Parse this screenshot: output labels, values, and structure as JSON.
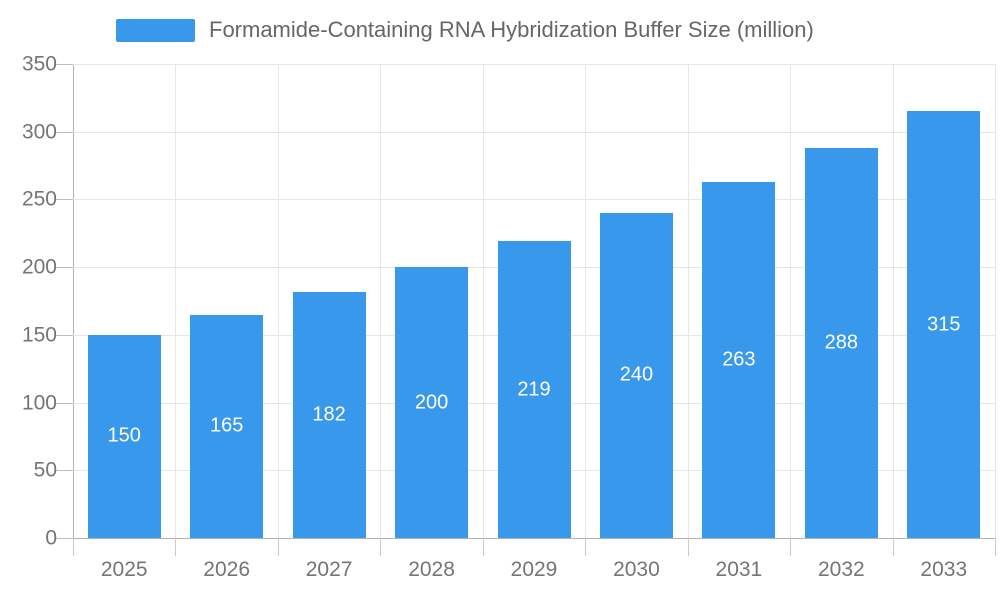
{
  "chart_data": {
    "type": "bar",
    "title": "Formamide-Containing RNA Hybridization Buffer Size (million)",
    "categories": [
      "2025",
      "2026",
      "2027",
      "2028",
      "2029",
      "2030",
      "2031",
      "2032",
      "2033"
    ],
    "values": [
      150,
      165,
      182,
      200,
      219,
      240,
      263,
      288,
      315
    ],
    "xlabel": "",
    "ylabel": "",
    "ylim": [
      0,
      350
    ],
    "ytick_interval": 50,
    "ytick_labels": [
      "0",
      "50",
      "100",
      "150",
      "200",
      "250",
      "300",
      "350"
    ],
    "grid": true,
    "legend_position": "top-left",
    "value_labels": "inside-middle",
    "colors": {
      "bar": "#3898EC",
      "value_label": "#ffffff",
      "axis_label": "#757575",
      "legend_text": "#666666",
      "gridline": "#e6e6e6",
      "axis_line": "#b3b3b3"
    }
  }
}
